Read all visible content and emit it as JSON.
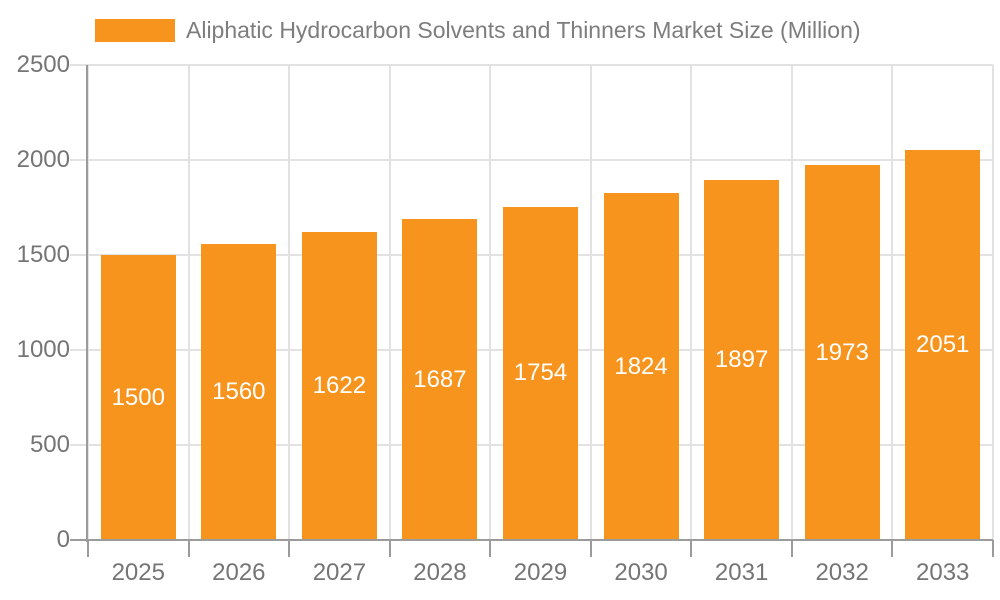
{
  "chart_data": {
    "type": "bar",
    "title": "Aliphatic Hydrocarbon Solvents and Thinners Market Size (Million)",
    "categories": [
      "2025",
      "2026",
      "2027",
      "2028",
      "2029",
      "2030",
      "2031",
      "2032",
      "2033"
    ],
    "values": [
      1500,
      1560,
      1622,
      1687,
      1754,
      1824,
      1897,
      1973,
      2051
    ],
    "xlabel": "",
    "ylabel": "",
    "ylim": [
      0,
      2500
    ],
    "yticks": [
      0,
      500,
      1000,
      1500,
      2000,
      2500
    ],
    "grid": true,
    "legend_position": "top-left",
    "bar_color": "#F7941E",
    "value_label_color": "#FFFFFF",
    "title_color": "#7D7D7D",
    "axis_text_color": "#757575",
    "grid_color": "#E2E2E2",
    "axis_line_color": "#9B9B9B",
    "background_color": "#FFFFFF"
  }
}
